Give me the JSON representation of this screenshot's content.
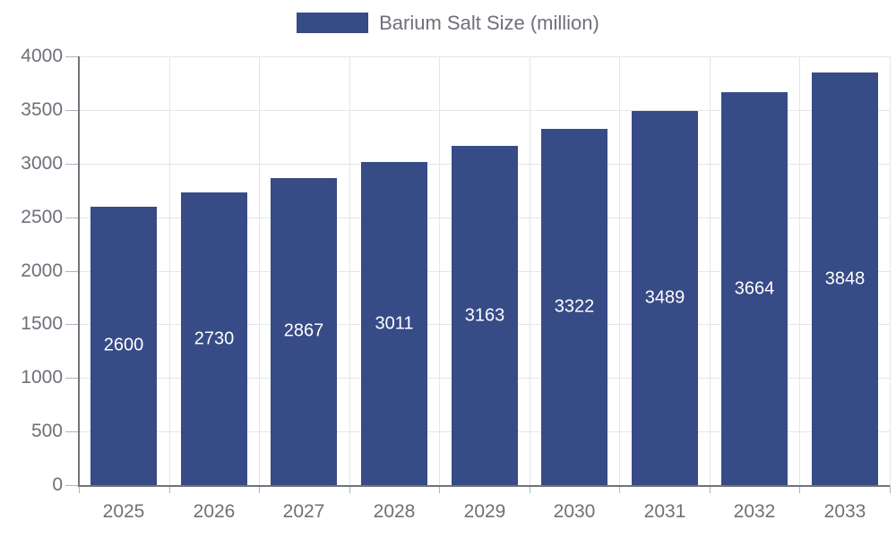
{
  "legend": {
    "label": "Barium Salt Size (million)"
  },
  "chart_data": {
    "type": "bar",
    "title": "",
    "xlabel": "",
    "ylabel": "",
    "categories": [
      "2025",
      "2026",
      "2027",
      "2028",
      "2029",
      "2030",
      "2031",
      "2032",
      "2033"
    ],
    "series": [
      {
        "name": "Barium Salt Size (million)",
        "values": [
          2600,
          2730,
          2867,
          3011,
          3163,
          3322,
          3489,
          3664,
          3848
        ]
      }
    ],
    "value_labels_shown": true,
    "value_label_position": "inside-center",
    "ylim": [
      0,
      4000
    ],
    "ytick_step": 500,
    "ytick_labels": [
      "0",
      "500",
      "1000",
      "1500",
      "2000",
      "2500",
      "3000",
      "3500",
      "4000"
    ],
    "grid": true,
    "legend_position": "top-center",
    "colors": {
      "bar": "#374B86",
      "axis_line": "#71737A",
      "tick": "#B0B3BC",
      "grid_line": "#E2E5EC",
      "axis_label": "#6E7079",
      "legend_text": "#6E7079",
      "value_label": "#FFFFFF",
      "background": "#FFFFFF"
    }
  }
}
